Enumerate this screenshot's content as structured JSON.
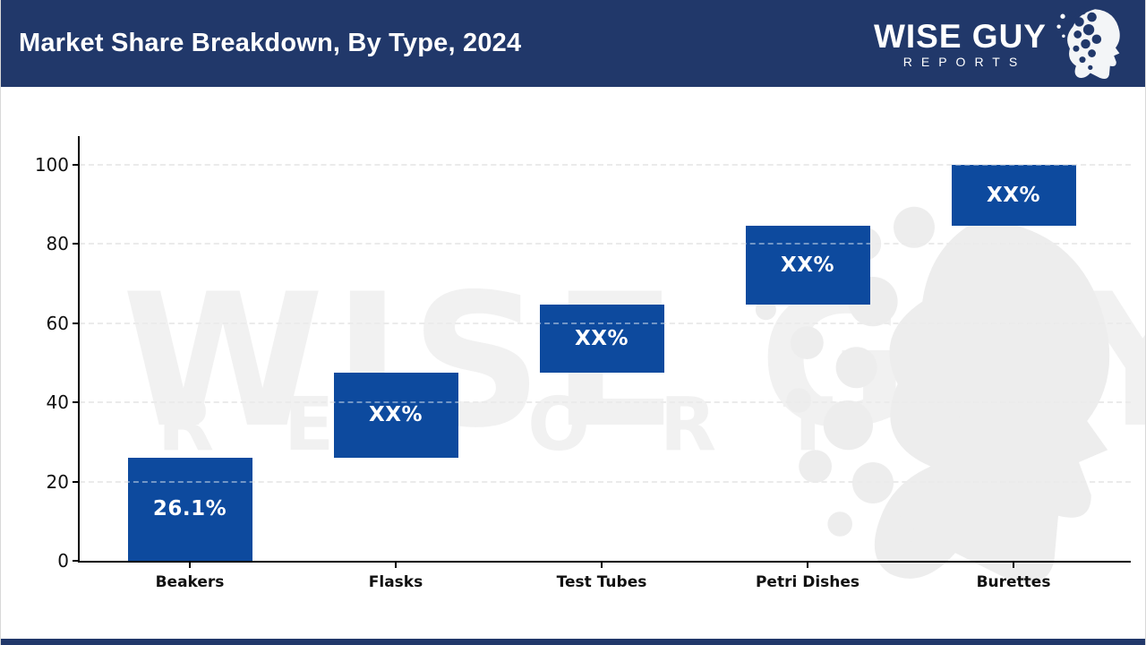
{
  "header": {
    "title": "Market Share Breakdown, By Type, 2024",
    "logo": {
      "line1": "WISE GUY",
      "line2": "REPORTS"
    }
  },
  "watermark": {
    "line1": "WISE GUY",
    "line2": "REPORTS"
  },
  "chart_data": {
    "type": "bar",
    "subtype": "floating-waterfall-segments",
    "title": "Market Share Breakdown, By Type, 2024",
    "categories": [
      "Beakers",
      "Flasks",
      "Test Tubes",
      "Petri Dishes",
      "Burettes"
    ],
    "segments": [
      {
        "category": "Beakers",
        "start": 0,
        "end": 26.1,
        "label": "26.1%"
      },
      {
        "category": "Flasks",
        "start": 26.1,
        "end": 47.5,
        "label": "XX%"
      },
      {
        "category": "Test Tubes",
        "start": 47.5,
        "end": 64.8,
        "label": "XX%"
      },
      {
        "category": "Petri Dishes",
        "start": 64.8,
        "end": 84.6,
        "label": "XX%"
      },
      {
        "category": "Burettes",
        "start": 84.6,
        "end": 100,
        "label": "XX%"
      }
    ],
    "xlabel": "",
    "ylabel": "",
    "ylim": [
      0,
      100
    ],
    "yticks": [
      0,
      20,
      40,
      60,
      80,
      100
    ],
    "grid": "horizontal-dashed",
    "legend": "none",
    "bar_color": "#0d4a9e",
    "bar_label_color": "#ffffff",
    "header_color": "#21386a"
  }
}
